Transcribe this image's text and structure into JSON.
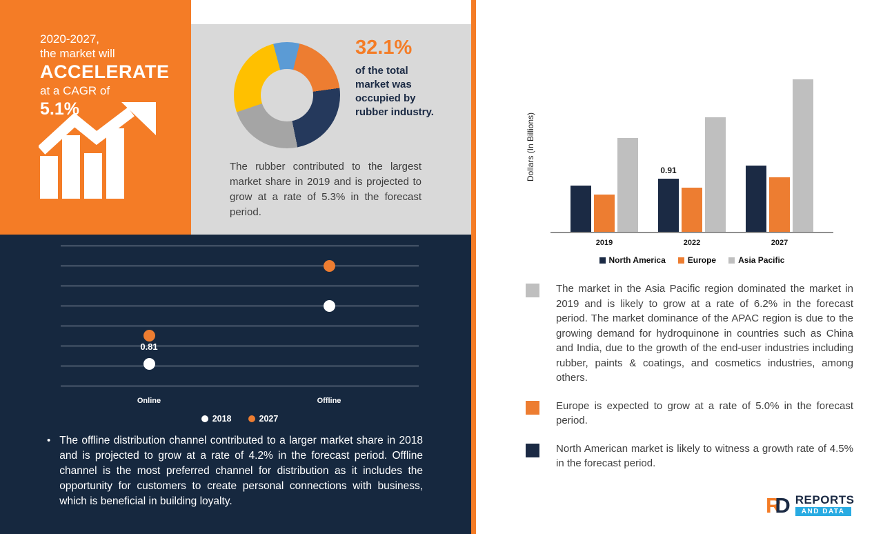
{
  "accelerate_panel": {
    "line1": "2020-2027,",
    "line2": "the market will",
    "line3": "ACCELERATE",
    "line4": "at a CAGR of",
    "line5": "5.1%"
  },
  "rubber_panel": {
    "stat": "32.1%",
    "caption": "of the total market was occupied by rubber industry.",
    "body": "The rubber contributed to the largest market share in 2019 and is projected to grow at a rate of 5.3% in the forecast period."
  },
  "channel_panel": {
    "bullet_marker": "•",
    "bullet": "The offline distribution channel contributed to a larger market share in 2018 and is projected to grow at a rate of 4.2% in the forecast period. Offline channel is the most preferred channel for distribution as it includes the opportunity for customers to create personal connections with business, which is beneficial in building loyalty."
  },
  "regional_bullets": [
    {
      "marker_color": "#BFBFBF",
      "text": "The market in the Asia Pacific region dominated the market in 2019 and is likely to grow at a rate of 6.2% in the forecast period. The market dominance of the APAC region is due to the growing demand for hydroquinone in countries such as China and India, due to the growth of the end-user industries including rubber, paints & coatings, and cosmetics industries, among others."
    },
    {
      "marker_color": "#ED7D31",
      "text": "Europe is expected to grow at a rate of 5.0% in the forecast period."
    },
    {
      "marker_color": "#1B2A44",
      "text": "North American market is likely to witness a growth rate of 4.5% in the forecast period."
    }
  ],
  "logo": {
    "mark_r": "R",
    "mark_d": "D",
    "reports": "REPORTS",
    "and_data": "AND DATA"
  },
  "colors": {
    "orange": "#F47C26",
    "navy": "#16283F",
    "panel_gray": "#D9D9D9",
    "bar_gray": "#BFBFBF",
    "logo_blue": "#29ABE2"
  },
  "chart_data": [
    {
      "type": "pie",
      "style": "donut",
      "start_angle_deg": -15,
      "segments": [
        {
          "label": "blue-segment",
          "color": "#5B9BD5",
          "value": 8
        },
        {
          "label": "orange-segment",
          "color": "#ED7D31",
          "value": 19
        },
        {
          "label": "navy-segment",
          "color": "#25395C",
          "value": 24
        },
        {
          "label": "gray-segment",
          "color": "#A5A5A5",
          "value": 23
        },
        {
          "label": "yellow-segment",
          "color": "#FFC000",
          "value": 26
        }
      ],
      "callout": "32.1% of the total market was occupied by rubber industry"
    },
    {
      "type": "scatter",
      "categories": [
        "Online",
        "Offline"
      ],
      "series": [
        {
          "name": "2018",
          "color": "#FFFFFF",
          "values": [
            0.81,
            1.1
          ]
        },
        {
          "name": "2027",
          "color": "#ED7D31",
          "values": [
            0.95,
            1.3
          ]
        }
      ],
      "ylim": [
        0.7,
        1.4
      ],
      "gridlines": 8,
      "legend_position": "bottom",
      "data_labels": [
        {
          "series": "2018",
          "category": "Online",
          "text": "0.81"
        }
      ]
    },
    {
      "type": "bar",
      "categories": [
        "2019",
        "2022",
        "2027"
      ],
      "series": [
        {
          "name": "North America",
          "color": "#1B2A44",
          "values": [
            0.79,
            0.91,
            1.13
          ]
        },
        {
          "name": "Europe",
          "color": "#ED7D31",
          "values": [
            0.64,
            0.75,
            0.93
          ]
        },
        {
          "name": "Asia Pacific",
          "color": "#BFBFBF",
          "values": [
            1.6,
            1.95,
            2.6
          ]
        }
      ],
      "ylabel": "Dollars (In Billions)",
      "ylim": [
        0,
        2.8
      ],
      "legend_position": "bottom",
      "data_labels": [
        {
          "series": "North America",
          "category": "2022",
          "text": "0.91"
        }
      ]
    }
  ]
}
